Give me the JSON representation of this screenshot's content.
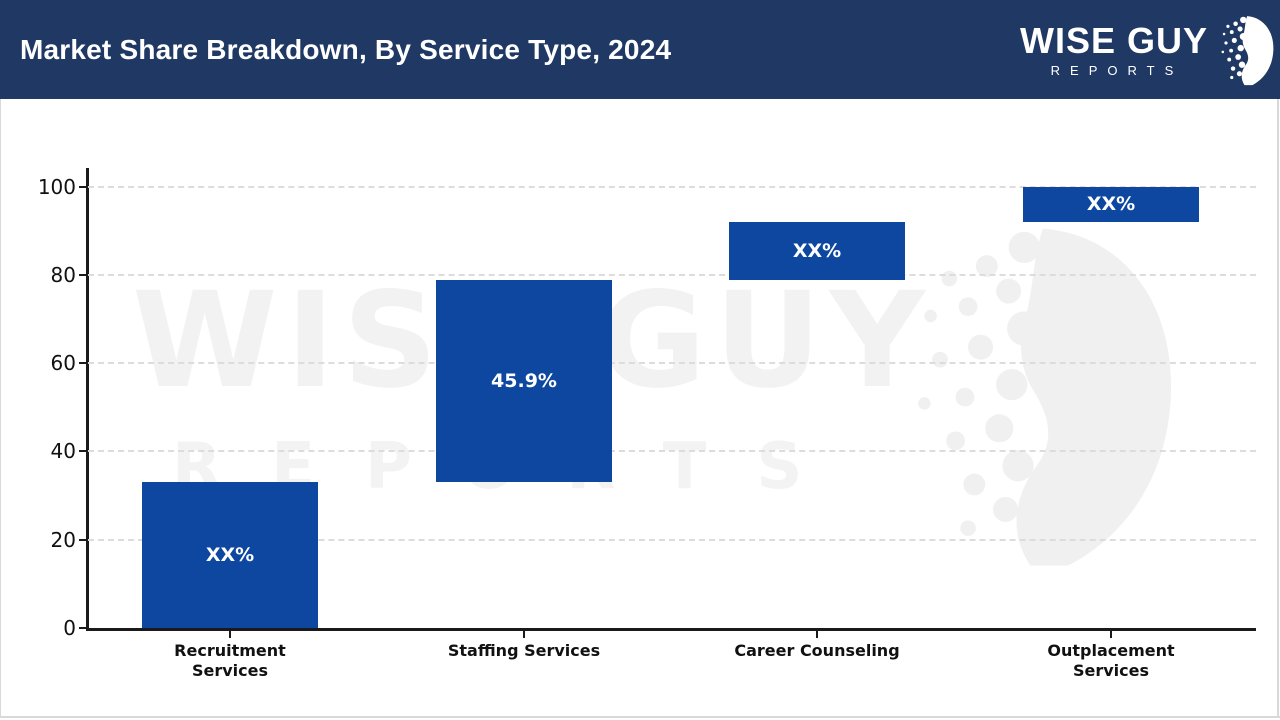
{
  "header": {
    "title": "Market Share Breakdown, By Service Type, 2024",
    "bg_color": "#203864",
    "logo": {
      "line1": "WISE GUY",
      "line2": "REPORTS"
    }
  },
  "watermark": {
    "line1": "WISE GUY",
    "line2": "REPORTS"
  },
  "chart_data": {
    "type": "bar",
    "subtype": "waterfall",
    "title": "Market Share Breakdown, By Service Type, 2024",
    "xlabel": "",
    "ylabel": "",
    "ylim": [
      0,
      100
    ],
    "yticks": [
      0,
      20,
      40,
      60,
      80,
      100
    ],
    "grid": "horizontal-dashed",
    "legend": "none",
    "bar_color": "#0d47a0",
    "axis_color": "#1a1a1a",
    "grid_color": "#dcdcdc",
    "categories": [
      "Recruitment Services",
      "Staffing Services",
      "Career Counseling",
      "Outplacement Services"
    ],
    "category_label_lines": [
      [
        "Recruitment",
        "Services"
      ],
      [
        "Staffing Services"
      ],
      [
        "Career Counseling"
      ],
      [
        "Outplacement",
        "Services"
      ]
    ],
    "segments": [
      {
        "category": "Recruitment Services",
        "start": 0.0,
        "end": 33.0,
        "label": "XX%"
      },
      {
        "category": "Staffing Services",
        "start": 33.0,
        "end": 78.9,
        "label": "45.9%",
        "value": 45.9
      },
      {
        "category": "Career Counseling",
        "start": 78.9,
        "end": 91.9,
        "label": "XX%"
      },
      {
        "category": "Outplacement Services",
        "start": 91.9,
        "end": 100.0,
        "label": "XX%"
      }
    ]
  }
}
